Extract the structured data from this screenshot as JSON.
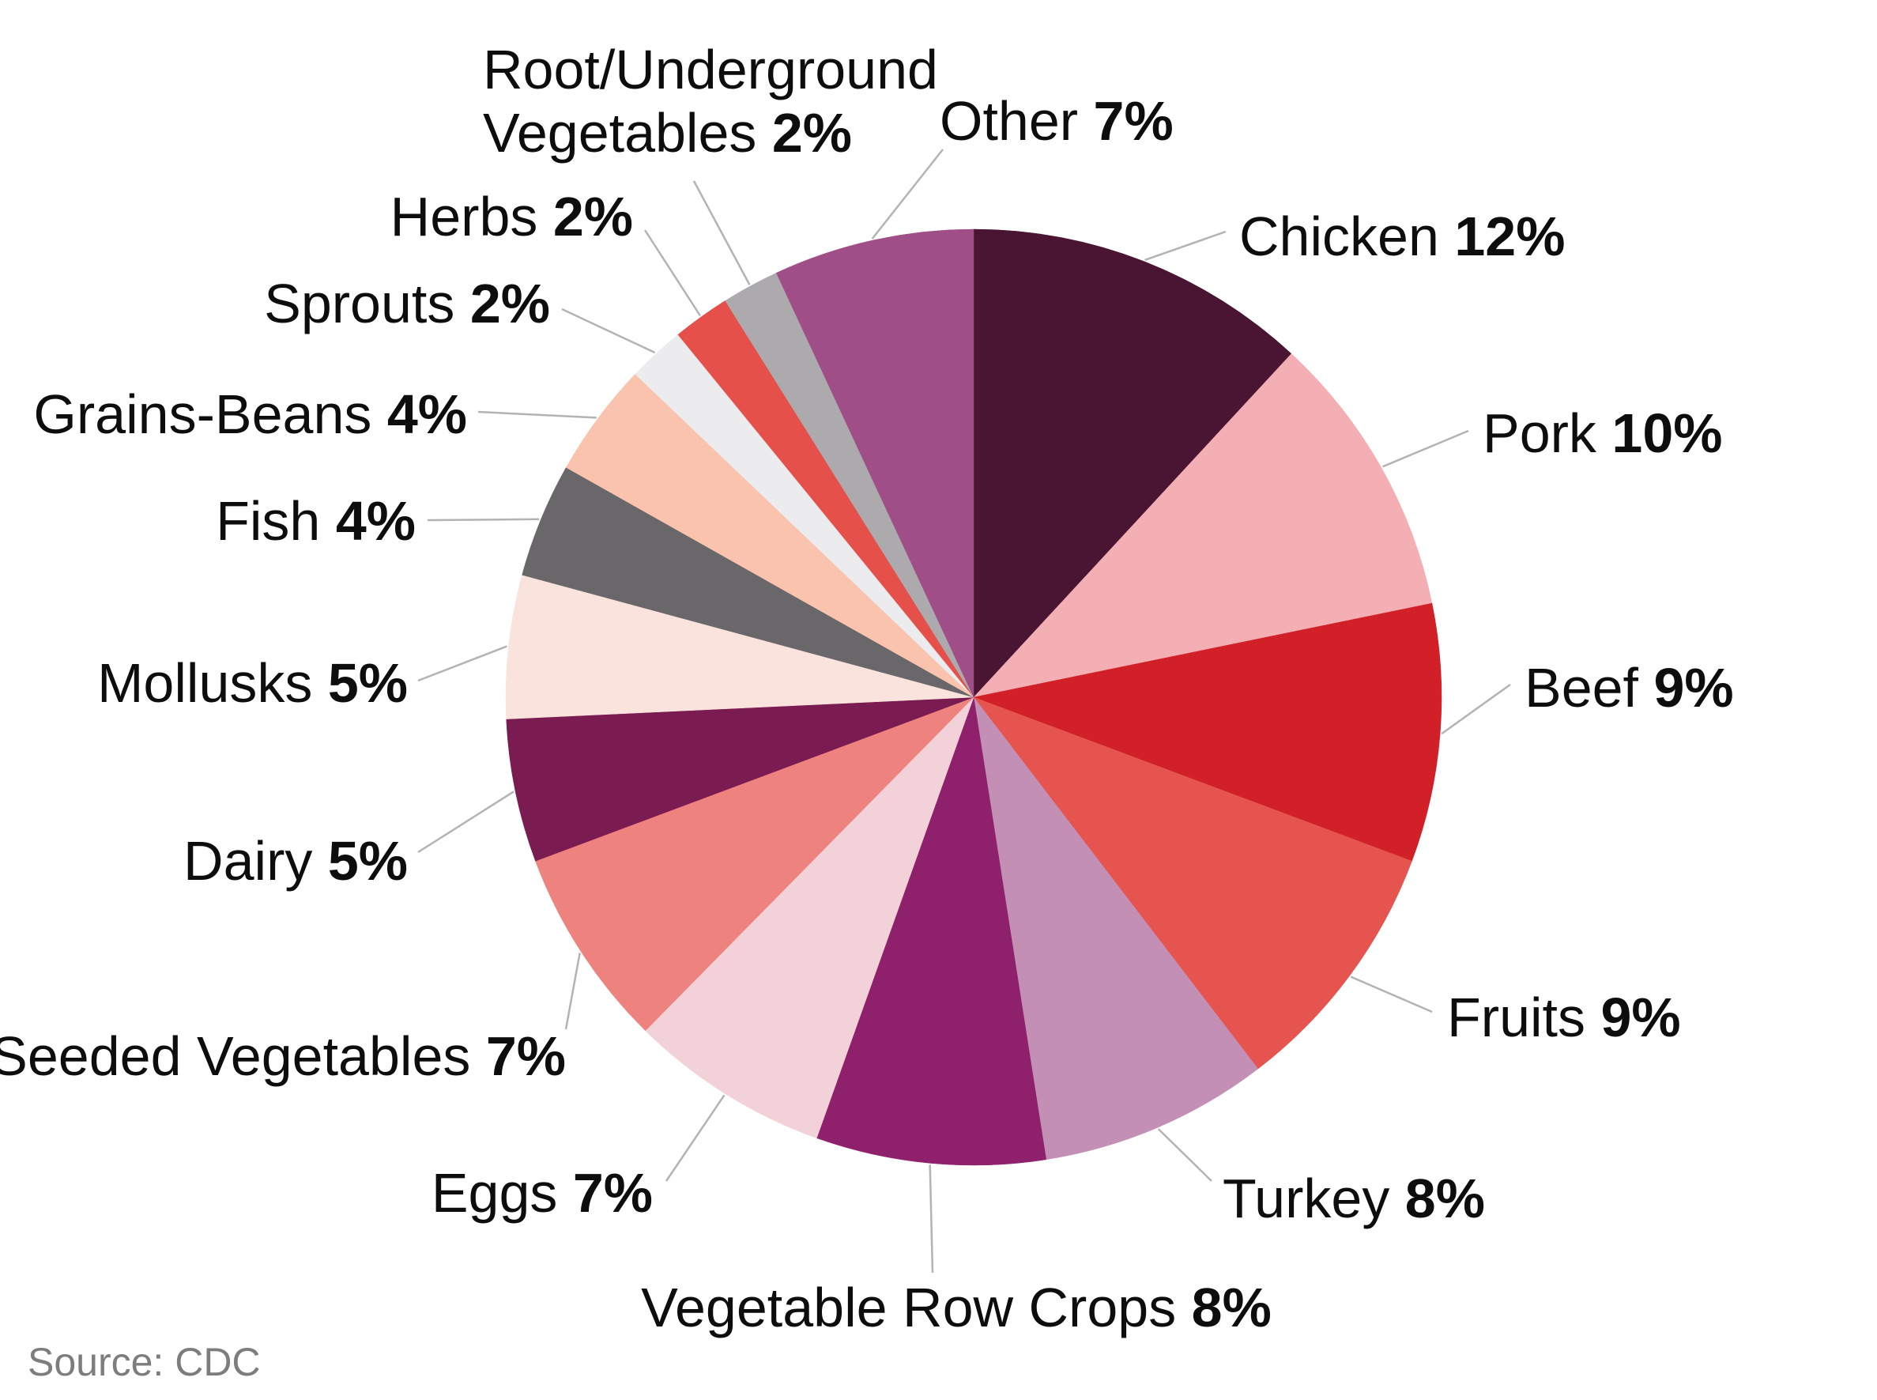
{
  "source": {
    "text": "Source: CDC"
  },
  "chart_data": {
    "type": "pie",
    "title": "",
    "unit": "percent",
    "start_angle": "12 o'clock, clockwise",
    "legend_position": "outside labels with leader lines",
    "slices": [
      {
        "id": "chicken",
        "label": "Chicken",
        "value": 12,
        "pct_label": "12%",
        "color": "#4A1532"
      },
      {
        "id": "pork",
        "label": "Pork",
        "value": 10,
        "pct_label": "10%",
        "color": "#F3AFB4"
      },
      {
        "id": "beef",
        "label": "Beef",
        "value": 9,
        "pct_label": "9%",
        "color": "#D12027"
      },
      {
        "id": "fruits",
        "label": "Fruits",
        "value": 9,
        "pct_label": "9%",
        "color": "#E6544F"
      },
      {
        "id": "turkey",
        "label": "Turkey",
        "value": 8,
        "pct_label": "8%",
        "color": "#C38FB4"
      },
      {
        "id": "vegetable_row_crops",
        "label": "Vegetable Row Crops",
        "value": 8,
        "pct_label": "8%",
        "color": "#8F216C"
      },
      {
        "id": "eggs",
        "label": "Eggs",
        "value": 7,
        "pct_label": "7%",
        "color": "#F2D2D8"
      },
      {
        "id": "seeded_vegetables",
        "label": "Seeded Vegetables",
        "value": 7,
        "pct_label": "7%",
        "color": "#EE827E"
      },
      {
        "id": "dairy",
        "label": "Dairy",
        "value": 5,
        "pct_label": "5%",
        "color": "#7A1B51"
      },
      {
        "id": "mollusks",
        "label": "Mollusks",
        "value": 5,
        "pct_label": "5%",
        "color": "#FAE3DC"
      },
      {
        "id": "fish",
        "label": "Fish",
        "value": 4,
        "pct_label": "4%",
        "color": "#696769"
      },
      {
        "id": "grains_beans",
        "label": "Grains-Beans",
        "value": 4,
        "pct_label": "4%",
        "color": "#F9C3AE"
      },
      {
        "id": "sprouts",
        "label": "Sprouts",
        "value": 2,
        "pct_label": "2%",
        "color": "#ECEBEE"
      },
      {
        "id": "herbs",
        "label": "Herbs",
        "value": 2,
        "pct_label": "2%",
        "color": "#E5504B"
      },
      {
        "id": "root_underground_vegetables",
        "label": "Root/Underground Vegetables",
        "label_lines": [
          "Root/Underground",
          "Vegetables"
        ],
        "value": 2,
        "pct_label": "2%",
        "color": "#ACAAAD"
      },
      {
        "id": "other",
        "label": "Other",
        "value": 7,
        "pct_label": "7%",
        "color": "#A04E87"
      }
    ],
    "colors": {
      "label_text": "#0D0D0D",
      "leader_line": "#B3B3B3",
      "source_text": "#7D7D7D",
      "background": "#FFFFFF"
    }
  }
}
